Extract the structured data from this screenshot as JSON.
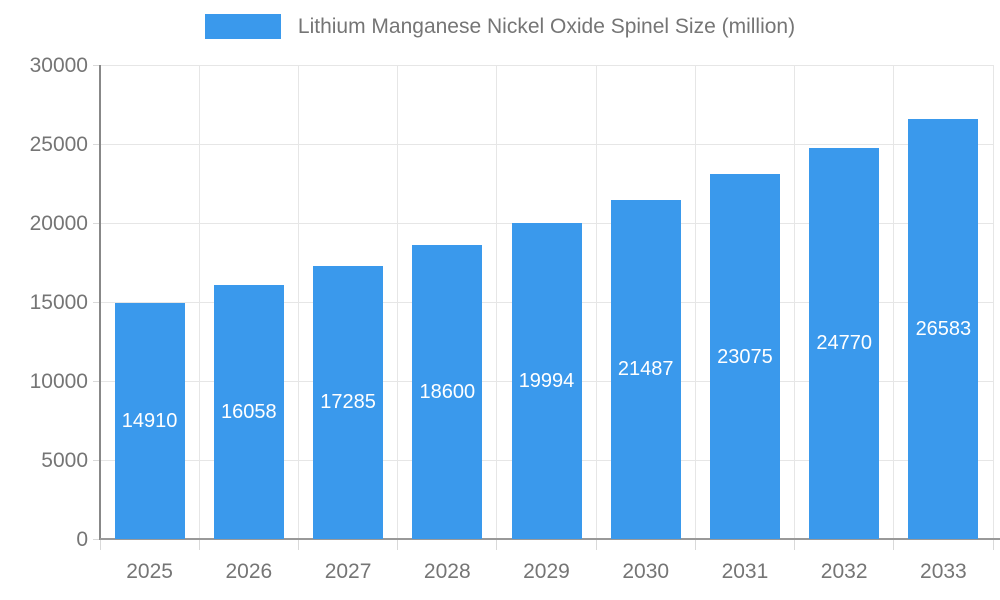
{
  "legend": {
    "label": "Lithium Manganese Nickel Oxide Spinel Size (million)"
  },
  "chart_data": {
    "type": "bar",
    "title": "Lithium Manganese Nickel Oxide Spinel Size (million)",
    "categories": [
      "2025",
      "2026",
      "2027",
      "2028",
      "2029",
      "2030",
      "2031",
      "2032",
      "2033"
    ],
    "series": [
      {
        "name": "Lithium Manganese Nickel Oxide Spinel Size (million)",
        "values": [
          14910,
          16058,
          17285,
          18600,
          19994,
          21487,
          23075,
          24770,
          26583
        ]
      }
    ],
    "value_labels_shown": true,
    "xlabel": "",
    "ylabel": "",
    "ylim": [
      0,
      30000
    ],
    "yticks": [
      0,
      5000,
      10000,
      15000,
      20000,
      25000,
      30000
    ],
    "grid": true,
    "legend_position": "top-center"
  },
  "colors": {
    "bar": "#3a99ec",
    "grid": "#e6e6e6",
    "axis_y": "#888888",
    "axis_x": "#999999",
    "tick": "#d9d9d9",
    "text": "#757575",
    "value_label": "#ffffff",
    "background": "#ffffff"
  }
}
